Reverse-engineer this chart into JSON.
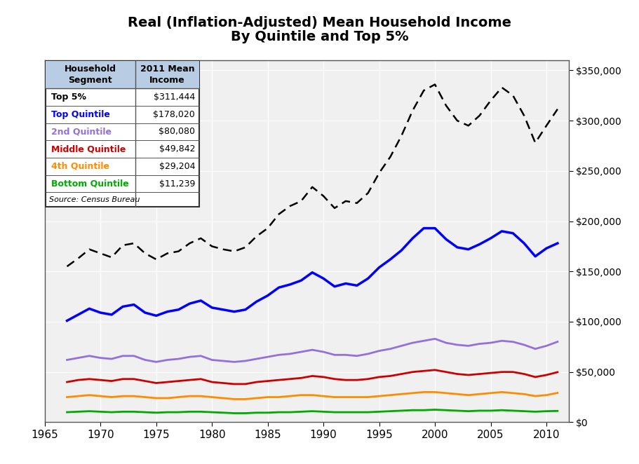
{
  "title_line1": "Real (Inflation-Adjusted) Mean Household Income",
  "title_line2": "By Quintile and Top 5%",
  "years_top5": [
    1967,
    1968,
    1969,
    1970,
    1971,
    1972,
    1973,
    1974,
    1975,
    1976,
    1977,
    1978,
    1979,
    1980,
    1981,
    1982,
    1983,
    1984,
    1985,
    1986,
    1987,
    1988,
    1989,
    1990,
    1991,
    1992,
    1993,
    1994,
    1995,
    1996,
    1997,
    1998,
    1999,
    2000,
    2001,
    2002,
    2003,
    2004,
    2005,
    2006,
    2007,
    2008,
    2009,
    2010,
    2011
  ],
  "vals_top5": [
    155000,
    163000,
    172000,
    168000,
    164000,
    176000,
    178000,
    168000,
    162000,
    168000,
    170000,
    178000,
    183000,
    175000,
    172000,
    170000,
    174000,
    185000,
    193000,
    207000,
    215000,
    220000,
    234000,
    225000,
    213000,
    220000,
    218000,
    228000,
    248000,
    264000,
    285000,
    310000,
    330000,
    336000,
    315000,
    300000,
    295000,
    305000,
    320000,
    333000,
    325000,
    305000,
    278000,
    295000,
    311444
  ],
  "years_topq": [
    1967,
    1968,
    1969,
    1970,
    1971,
    1972,
    1973,
    1974,
    1975,
    1976,
    1977,
    1978,
    1979,
    1980,
    1981,
    1982,
    1983,
    1984,
    1985,
    1986,
    1987,
    1988,
    1989,
    1990,
    1991,
    1992,
    1993,
    1994,
    1995,
    1996,
    1997,
    1998,
    1999,
    2000,
    2001,
    2002,
    2003,
    2004,
    2005,
    2006,
    2007,
    2008,
    2009,
    2010,
    2011
  ],
  "vals_topq": [
    101000,
    107000,
    113000,
    109000,
    107000,
    115000,
    117000,
    109000,
    106000,
    110000,
    112000,
    118000,
    121000,
    114000,
    112000,
    110000,
    112000,
    120000,
    126000,
    134000,
    137000,
    141000,
    149000,
    143000,
    135000,
    138000,
    136000,
    143000,
    154000,
    162000,
    171000,
    183000,
    193000,
    193000,
    182000,
    174000,
    172000,
    177000,
    183000,
    190000,
    188000,
    178000,
    165000,
    173000,
    178020
  ],
  "years_2nd": [
    1967,
    1968,
    1969,
    1970,
    1971,
    1972,
    1973,
    1974,
    1975,
    1976,
    1977,
    1978,
    1979,
    1980,
    1981,
    1982,
    1983,
    1984,
    1985,
    1986,
    1987,
    1988,
    1989,
    1990,
    1991,
    1992,
    1993,
    1994,
    1995,
    1996,
    1997,
    1998,
    1999,
    2000,
    2001,
    2002,
    2003,
    2004,
    2005,
    2006,
    2007,
    2008,
    2009,
    2010,
    2011
  ],
  "vals_2nd": [
    62000,
    64000,
    66000,
    64000,
    63000,
    66000,
    66000,
    62000,
    60000,
    62000,
    63000,
    65000,
    66000,
    62000,
    61000,
    60000,
    61000,
    63000,
    65000,
    67000,
    68000,
    70000,
    72000,
    70000,
    67000,
    67000,
    66000,
    68000,
    71000,
    73000,
    76000,
    79000,
    81000,
    83000,
    79000,
    77000,
    76000,
    78000,
    79000,
    81000,
    80000,
    77000,
    73000,
    76000,
    80080
  ],
  "years_mid": [
    1967,
    1968,
    1969,
    1970,
    1971,
    1972,
    1973,
    1974,
    1975,
    1976,
    1977,
    1978,
    1979,
    1980,
    1981,
    1982,
    1983,
    1984,
    1985,
    1986,
    1987,
    1988,
    1989,
    1990,
    1991,
    1992,
    1993,
    1994,
    1995,
    1996,
    1997,
    1998,
    1999,
    2000,
    2001,
    2002,
    2003,
    2004,
    2005,
    2006,
    2007,
    2008,
    2009,
    2010,
    2011
  ],
  "vals_mid": [
    40000,
    42000,
    43000,
    42000,
    41000,
    43000,
    43000,
    41000,
    39000,
    40000,
    41000,
    42000,
    43000,
    40000,
    39000,
    38000,
    38000,
    40000,
    41000,
    42000,
    43000,
    44000,
    46000,
    45000,
    43000,
    42000,
    42000,
    43000,
    45000,
    46000,
    48000,
    50000,
    51000,
    52000,
    50000,
    48000,
    47000,
    48000,
    49000,
    50000,
    50000,
    48000,
    45000,
    47000,
    49842
  ],
  "years_4th": [
    1967,
    1968,
    1969,
    1970,
    1971,
    1972,
    1973,
    1974,
    1975,
    1976,
    1977,
    1978,
    1979,
    1980,
    1981,
    1982,
    1983,
    1984,
    1985,
    1986,
    1987,
    1988,
    1989,
    1990,
    1991,
    1992,
    1993,
    1994,
    1995,
    1996,
    1997,
    1998,
    1999,
    2000,
    2001,
    2002,
    2003,
    2004,
    2005,
    2006,
    2007,
    2008,
    2009,
    2010,
    2011
  ],
  "vals_4th": [
    25000,
    26000,
    27000,
    26000,
    25000,
    26000,
    26000,
    25000,
    24000,
    24000,
    25000,
    26000,
    26000,
    25000,
    24000,
    23000,
    23000,
    24000,
    25000,
    25000,
    26000,
    27000,
    27000,
    26000,
    25000,
    25000,
    25000,
    25000,
    26000,
    27000,
    28000,
    29000,
    30000,
    30000,
    29000,
    28000,
    27000,
    28000,
    29000,
    30000,
    29000,
    28000,
    26000,
    27000,
    29204
  ],
  "years_bot": [
    1967,
    1968,
    1969,
    1970,
    1971,
    1972,
    1973,
    1974,
    1975,
    1976,
    1977,
    1978,
    1979,
    1980,
    1981,
    1982,
    1983,
    1984,
    1985,
    1986,
    1987,
    1988,
    1989,
    1990,
    1991,
    1992,
    1993,
    1994,
    1995,
    1996,
    1997,
    1998,
    1999,
    2000,
    2001,
    2002,
    2003,
    2004,
    2005,
    2006,
    2007,
    2008,
    2009,
    2010,
    2011
  ],
  "vals_bot": [
    10000,
    10500,
    11000,
    10500,
    10000,
    10500,
    10500,
    10000,
    9500,
    10000,
    10000,
    10500,
    10500,
    10000,
    9500,
    9000,
    9000,
    9500,
    9500,
    10000,
    10000,
    10500,
    11000,
    10500,
    10000,
    10000,
    10000,
    10000,
    10500,
    11000,
    11500,
    12000,
    12000,
    12500,
    12000,
    11500,
    11000,
    11500,
    11500,
    12000,
    11500,
    11000,
    10500,
    11000,
    11239
  ],
  "color_top5": "#000000",
  "color_topq": "#0000FF",
  "color_2nd": "#9370DB",
  "color_mid": "#CC0000",
  "color_4th": "#FF8C00",
  "color_bot": "#00AA00",
  "xlim": [
    1965,
    2012
  ],
  "ylim": [
    0,
    360000
  ],
  "yticks": [
    0,
    50000,
    100000,
    150000,
    200000,
    250000,
    300000,
    350000
  ],
  "xticks": [
    1965,
    1970,
    1975,
    1980,
    1985,
    1990,
    1995,
    2000,
    2005,
    2010
  ],
  "background_color": "#FFFFFF",
  "plot_bg": "#F0F0F0",
  "grid_color": "#FFFFFF",
  "table_header_bg": "#B8CCE4",
  "source_text": "Source: Census Bureau",
  "rows": [
    [
      "Top 5%",
      "$311,444",
      "#000000"
    ],
    [
      "Top Quintile",
      "$178,020",
      "#0000FF"
    ],
    [
      "2nd Quintile",
      "$80,080",
      "#9370DB"
    ],
    [
      "Middle Quintile",
      "$49,842",
      "#CC0000"
    ],
    [
      "4th Quintile",
      "$29,204",
      "#FF8C00"
    ],
    [
      "Bottom Quintile",
      "$11,239",
      "#00AA00"
    ]
  ]
}
